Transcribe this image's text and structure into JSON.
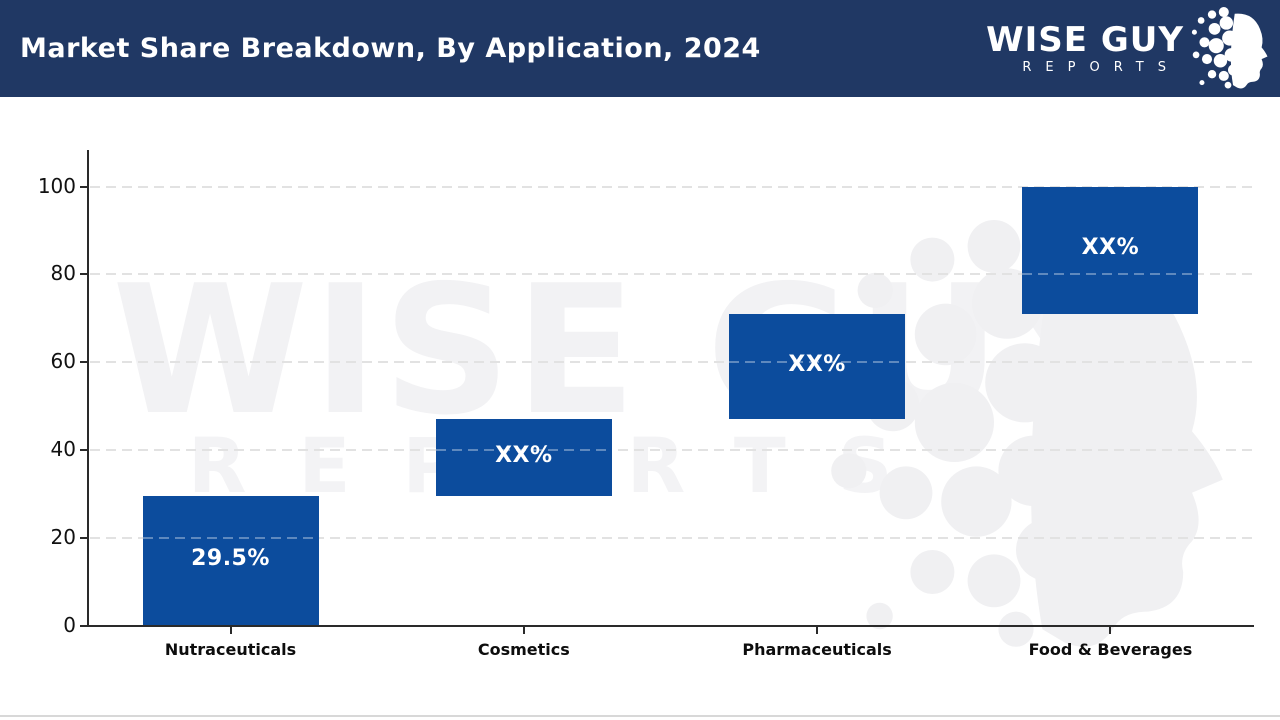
{
  "header": {
    "title": "Market Share Breakdown, By Application, 2024",
    "logo": {
      "line1": "WISE GUY",
      "line2": "REPORTS"
    }
  },
  "watermark": {
    "line1": "WISE GUY",
    "line2": "REPORTS"
  },
  "colors": {
    "header_bg": "#203864",
    "bar": "#0c4c9d",
    "gridline": "#e2e2e2",
    "axis": "#2a2a2a",
    "watermark": "#f2f2f4",
    "bar_label_text": "#ffffff"
  },
  "chart_data": {
    "type": "bar",
    "subtype": "waterfall",
    "title": "Market Share Breakdown, By Application, 2024",
    "categories": [
      "Nutraceuticals",
      "Cosmetics",
      "Pharmaceuticals",
      "Food & Beverages"
    ],
    "segments": [
      {
        "category": "Nutraceuticals",
        "start": 0,
        "end": 29.5,
        "label": "29.5%"
      },
      {
        "category": "Cosmetics",
        "start": 29.5,
        "end": 47,
        "label": "XX%"
      },
      {
        "category": "Pharmaceuticals",
        "start": 47,
        "end": 71,
        "label": "XX%"
      },
      {
        "category": "Food & Beverages",
        "start": 71,
        "end": 100,
        "label": "XX%"
      }
    ],
    "yticks": [
      0,
      20,
      40,
      60,
      80,
      100
    ],
    "ylim": [
      0,
      108
    ],
    "xlabel": "",
    "ylabel": "",
    "grid": "horizontal-dashed",
    "legend": null
  }
}
